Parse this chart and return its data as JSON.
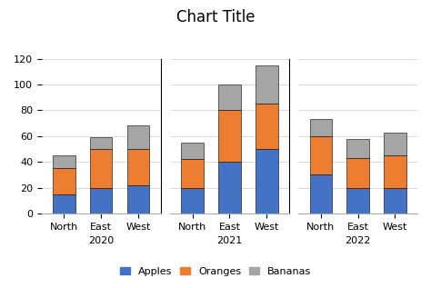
{
  "title": "Chart Title",
  "years": [
    "2020",
    "2021",
    "2022"
  ],
  "regions": [
    "North",
    "East",
    "West"
  ],
  "data": {
    "2020": {
      "Apples": [
        15,
        20,
        22
      ],
      "Oranges": [
        20,
        30,
        28
      ],
      "Bananas": [
        10,
        9,
        18
      ]
    },
    "2021": {
      "Apples": [
        20,
        40,
        50
      ],
      "Oranges": [
        22,
        40,
        35
      ],
      "Bananas": [
        13,
        20,
        30
      ]
    },
    "2022": {
      "Apples": [
        30,
        20,
        20
      ],
      "Oranges": [
        30,
        23,
        25
      ],
      "Bananas": [
        13,
        15,
        18
      ]
    }
  },
  "colors": {
    "Apples": "#4472C4",
    "Oranges": "#ED7D31",
    "Bananas": "#A5A5A5"
  },
  "ylim": [
    0,
    120
  ],
  "yticks": [
    0,
    20,
    40,
    60,
    80,
    100,
    120
  ],
  "legend_labels": [
    "Apples",
    "Oranges",
    "Bananas"
  ],
  "title_fontsize": 12,
  "tick_fontsize": 8,
  "legend_fontsize": 8,
  "bar_width": 0.6
}
